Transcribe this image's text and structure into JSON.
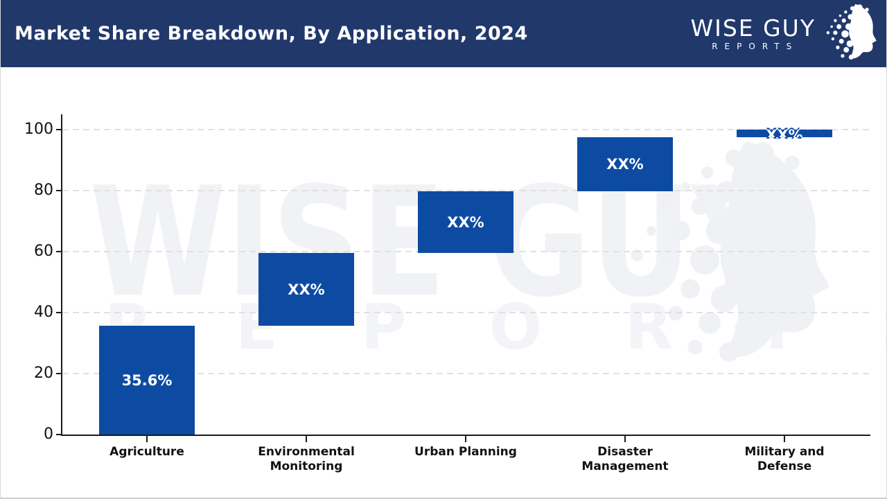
{
  "header": {
    "title": "Market Share Breakdown, By Application, 2024",
    "logo_line1": "WISE GUY",
    "logo_line2": "REPORTS",
    "bg_color": "#21386b"
  },
  "watermark": {
    "word": "WISE GUY",
    "reports": "R E P O R T S"
  },
  "colors": {
    "bar": "#0d4ba3",
    "axis": "#1a1a1a",
    "gridline": "#e1e1e1",
    "header_bg": "#21386b",
    "label_on_bar": "#ffffff"
  },
  "chart_data": {
    "type": "bar",
    "subtype": "waterfall",
    "title": "Market Share Breakdown, By Application, 2024",
    "categories": [
      {
        "lines": [
          "Agriculture"
        ]
      },
      {
        "lines": [
          "Environmental",
          "Monitoring"
        ]
      },
      {
        "lines": [
          "Urban Planning"
        ]
      },
      {
        "lines": [
          "Disaster",
          "Management"
        ]
      },
      {
        "lines": [
          "Military and",
          "Defense"
        ]
      }
    ],
    "bars": [
      {
        "label": "35.6%",
        "start": 0,
        "end": 35.6
      },
      {
        "label": "XX%",
        "start": 35.6,
        "end": 59.5
      },
      {
        "label": "XX%",
        "start": 59.5,
        "end": 79.8
      },
      {
        "label": "XX%",
        "start": 79.8,
        "end": 97.4
      },
      {
        "label": "XX%",
        "start": 97.4,
        "end": 100
      }
    ],
    "y_ticks": [
      0,
      20,
      40,
      60,
      80,
      100
    ],
    "ylim": [
      0,
      100
    ],
    "xlabel": "",
    "ylabel": "",
    "grid": "horizontal-dashed",
    "legend": "none",
    "bar_color": "#0d4ba3"
  }
}
